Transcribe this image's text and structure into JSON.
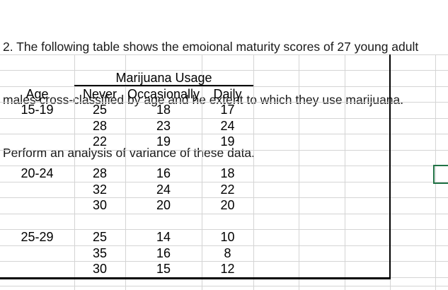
{
  "problem_text": {
    "lines": [
      "2. The following table shows the emoional maturity scores of 27 young adult",
      "males cross-classified by age and he extent to which they use marijuana.",
      "Perform an analysis of variance of these data."
    ]
  },
  "table": {
    "spanner": "Marijuana Usage",
    "columns": [
      "Age",
      "Never",
      "Occasionally",
      "Daily"
    ],
    "groups": [
      {
        "age": "15-19",
        "rows": [
          [
            "25",
            "18",
            "17"
          ],
          [
            "28",
            "23",
            "24"
          ],
          [
            "22",
            "19",
            "19"
          ]
        ]
      },
      {
        "age": "20-24",
        "rows": [
          [
            "28",
            "16",
            "18"
          ],
          [
            "32",
            "24",
            "22"
          ],
          [
            "30",
            "20",
            "20"
          ]
        ]
      },
      {
        "age": "25-29",
        "rows": [
          [
            "25",
            "14",
            "10"
          ],
          [
            "35",
            "16",
            "8"
          ],
          [
            "30",
            "15",
            "12"
          ]
        ]
      }
    ]
  },
  "selection": {
    "border_color": "#217346"
  },
  "grid": {
    "gridline_color": "#d4d4d4",
    "border_color": "#000000"
  }
}
